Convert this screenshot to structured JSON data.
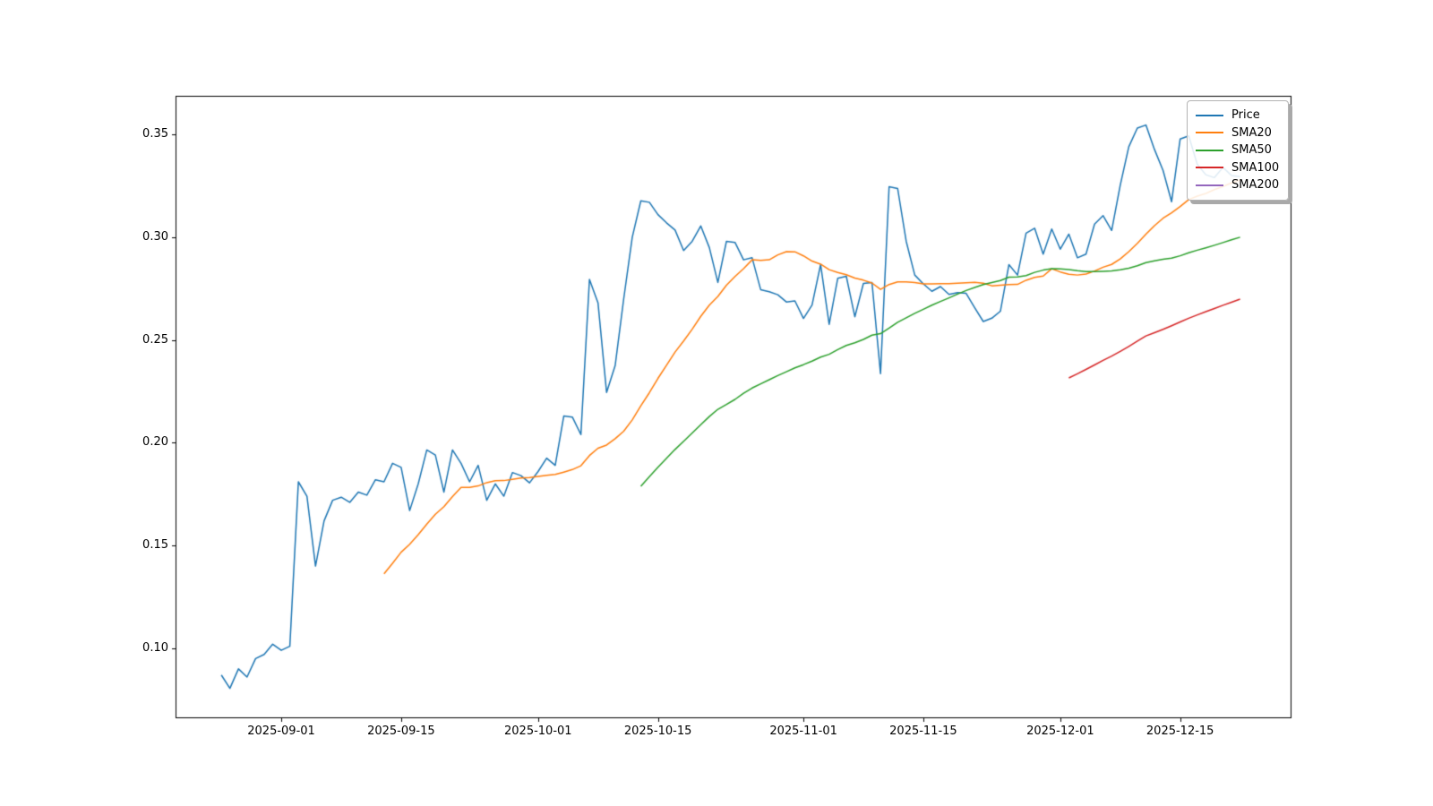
{
  "figure": {
    "background_color": "#ffffff",
    "spine_color": "#000000",
    "tick_text_color": "#000000"
  },
  "chart_data": {
    "type": "line",
    "title": "",
    "xlabel": "",
    "ylabel": "",
    "grid": false,
    "x_axis": {
      "tick_labels": [
        "2025-09-01",
        "2025-09-15",
        "2025-10-01",
        "2025-10-15",
        "2025-11-01",
        "2025-11-15",
        "2025-12-01",
        "2025-12-15"
      ],
      "tick_day_offsets": [
        0,
        14,
        30,
        44,
        61,
        75,
        91,
        105
      ],
      "range_day_offsets": [
        -12.35,
        117.9
      ],
      "reference_date": "2025-09-01"
    },
    "y_axis": {
      "tick_labels": [
        "0.10",
        "0.15",
        "0.20",
        "0.25",
        "0.30",
        "0.35"
      ],
      "tick_values": [
        0.1,
        0.15,
        0.2,
        0.25,
        0.3,
        0.35
      ],
      "range": [
        0.0664,
        0.3688
      ]
    },
    "series": [
      {
        "name": "Price",
        "color": "#1f77b4",
        "kind": "price",
        "start_date": "2025-08-25",
        "start_day_offset": -7,
        "frequency": "daily",
        "values": [
          0.087,
          0.0805,
          0.09,
          0.086,
          0.095,
          0.097,
          0.102,
          0.099,
          0.101,
          0.181,
          0.174,
          0.14,
          0.162,
          0.172,
          0.1735,
          0.171,
          0.176,
          0.1745,
          0.182,
          0.181,
          0.19,
          0.188,
          0.167,
          0.18,
          0.1965,
          0.194,
          0.176,
          0.1965,
          0.19,
          0.181,
          0.189,
          0.172,
          0.18,
          0.174,
          0.1855,
          0.184,
          0.1805,
          0.186,
          0.1925,
          0.189,
          0.213,
          0.2125,
          0.204,
          0.2795,
          0.268,
          0.2245,
          0.2375,
          0.27,
          0.3,
          0.3177,
          0.317,
          0.311,
          0.307,
          0.3035,
          0.2935,
          0.298,
          0.3055,
          0.295,
          0.278,
          0.298,
          0.2975,
          0.289,
          0.29,
          0.2745,
          0.2735,
          0.272,
          0.2685,
          0.269,
          0.2605,
          0.267,
          0.2867,
          0.2576,
          0.28,
          0.281,
          0.2613,
          0.2775,
          0.278,
          0.2336,
          0.3246,
          0.3237,
          0.298,
          0.2816,
          0.2773,
          0.2737,
          0.276,
          0.2722,
          0.273,
          0.2727,
          0.2657,
          0.259,
          0.2606,
          0.264,
          0.2867,
          0.2816,
          0.302,
          0.3044,
          0.2918,
          0.304,
          0.2942,
          0.3015,
          0.29,
          0.2918,
          0.3064,
          0.3105,
          0.3033,
          0.3253,
          0.344,
          0.3531,
          0.3546,
          0.3427,
          0.3325,
          0.3173,
          0.3478,
          0.3493,
          0.3355,
          0.3304,
          0.329,
          0.334,
          0.33,
          0.3295
        ]
      },
      {
        "name": "SMA20",
        "color": "#ff7f0e",
        "kind": "sma",
        "window": 20
      },
      {
        "name": "SMA50",
        "color": "#2ca02c",
        "kind": "sma",
        "window": 50
      },
      {
        "name": "SMA100",
        "color": "#d62728",
        "kind": "sma",
        "window": 100
      },
      {
        "name": "SMA200",
        "color": "#9467bd",
        "kind": "sma",
        "window": 200
      }
    ],
    "legend": {
      "position": "upper right",
      "items": [
        {
          "label": "Price",
          "color": "#1f77b4"
        },
        {
          "label": "SMA20",
          "color": "#ff7f0e"
        },
        {
          "label": "SMA50",
          "color": "#2ca02c"
        },
        {
          "label": "SMA100",
          "color": "#d62728"
        },
        {
          "label": "SMA200",
          "color": "#9467bd"
        }
      ]
    }
  }
}
